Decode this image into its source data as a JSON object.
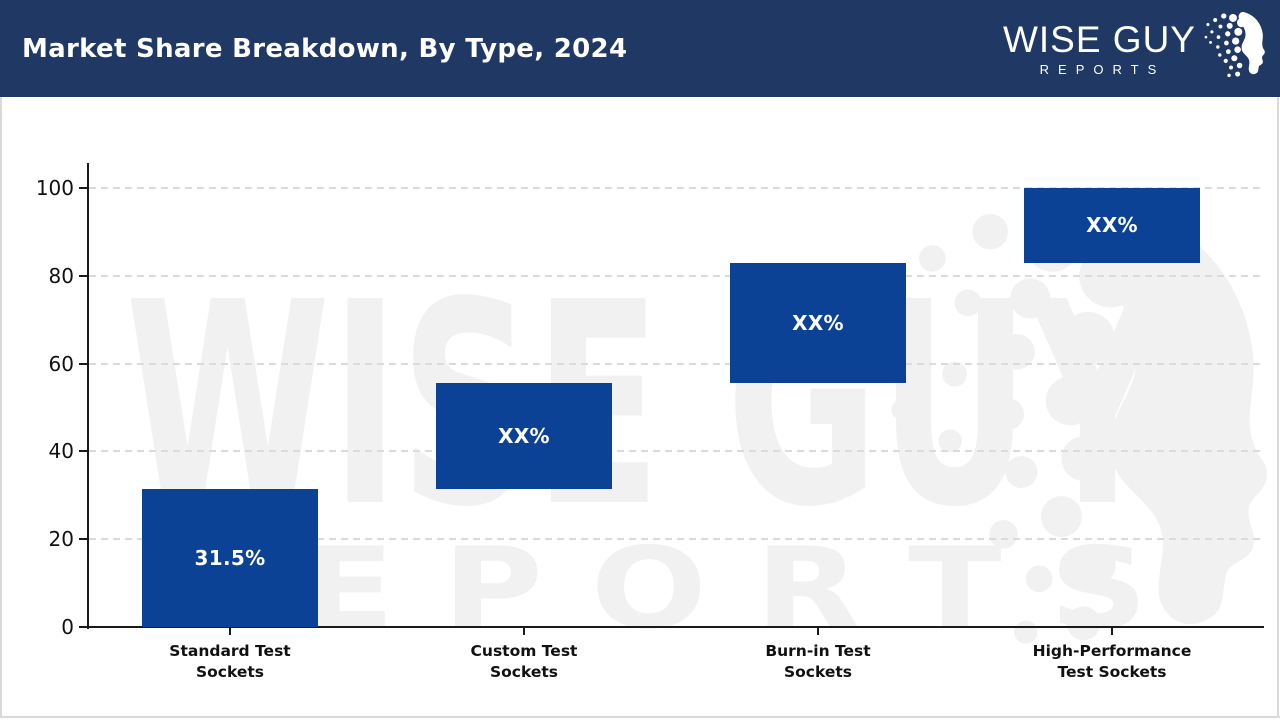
{
  "header": {
    "title": "Market Share Breakdown, By Type, 2024",
    "logo": {
      "name": "WISE GUY",
      "sub": "REPORTS"
    }
  },
  "watermark": {
    "text": "WISE GUY",
    "sub": "R E P O R T S"
  },
  "chart_data": {
    "type": "bar",
    "subtype": "waterfall",
    "title": "Market Share Breakdown, By Type, 2024",
    "categories": [
      "Standard Test\nSockets",
      "Custom Test\nSockets",
      "Burn-in Test\nSockets",
      "High-Performance\nTest Sockets"
    ],
    "segments": [
      {
        "category": "Standard Test Sockets",
        "start": 0,
        "end": 31.5,
        "value": 31.5,
        "label": "31.5%"
      },
      {
        "category": "Custom Test Sockets",
        "start": 31.5,
        "end": 55.5,
        "value": 24,
        "label": "XX%"
      },
      {
        "category": "Burn-in Test Sockets",
        "start": 55.5,
        "end": 83,
        "value": 27.5,
        "label": "XX%"
      },
      {
        "category": "High-Performance Test Sockets",
        "start": 83,
        "end": 100,
        "value": 17,
        "label": "XX%"
      }
    ],
    "yticks": [
      0,
      20,
      40,
      60,
      80,
      100
    ],
    "ylim": [
      0,
      100
    ],
    "xlabel": "",
    "ylabel": "",
    "grid": "horizontal-dashed",
    "legend": "none"
  },
  "colors": {
    "header_bg": "#1f3864",
    "bar": "#0b4295",
    "grid": "#dbdbdb",
    "axis": "#1a1a1a",
    "text": "#111111",
    "on_bar_text": "#ffffff",
    "watermark": "#f1f1f1",
    "frame": "#d9d9d9"
  }
}
